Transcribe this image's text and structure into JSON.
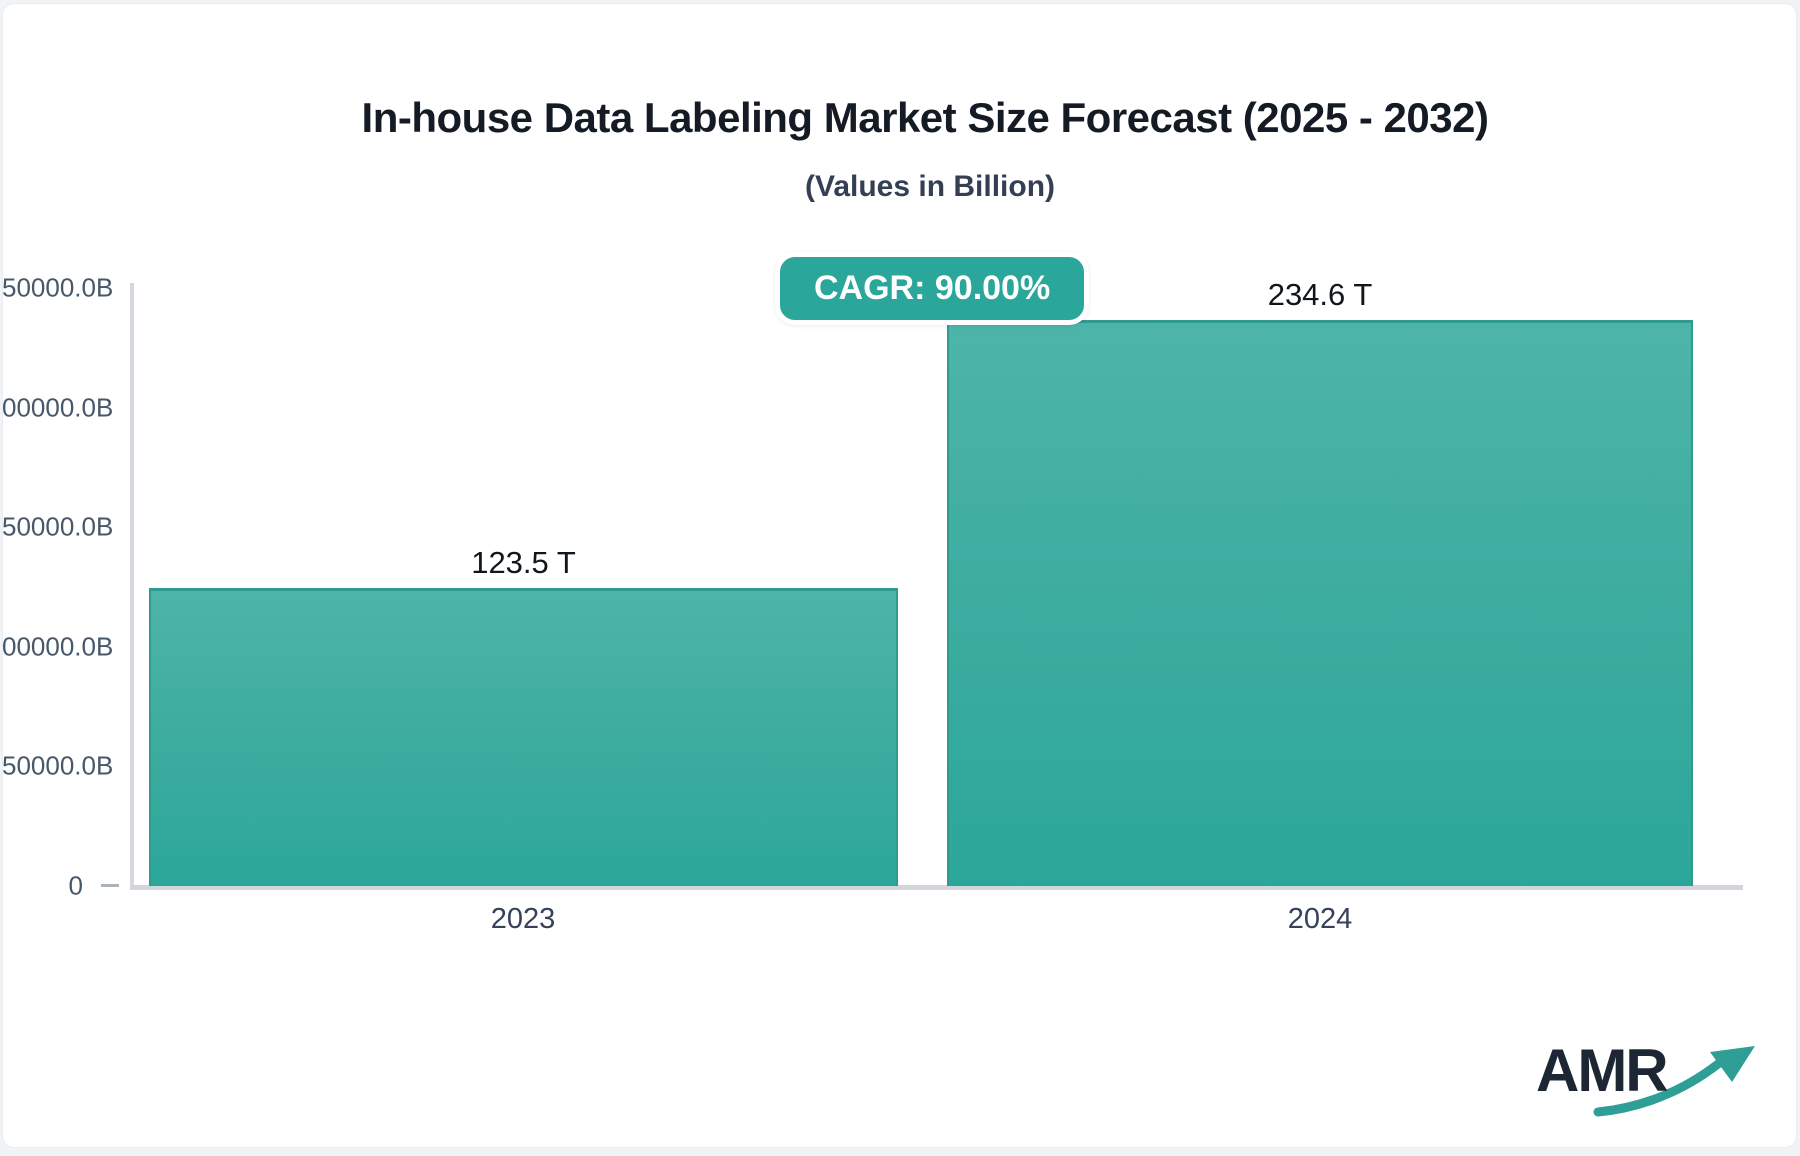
{
  "page": {
    "background": "#f1f4f7",
    "card_background": "#ffffff"
  },
  "header": {
    "title": "In-house Data Labeling Market Size Forecast (2025 - 2032)",
    "subtitle": "(Values in Billion)"
  },
  "badge": {
    "label": "CAGR: 90.00%",
    "background": "#2aa69b",
    "text_color": "#ffffff"
  },
  "chart_data": {
    "type": "bar",
    "title": "In-house Data Labeling Market Size Forecast (2025 - 2032)",
    "subtitle": "(Values in Billion)",
    "categories": [
      "2023",
      "2024"
    ],
    "values": [
      123500,
      234600
    ],
    "value_unit": "B",
    "bar_value_labels": [
      "123.5 T",
      "234.6 T"
    ],
    "cagr": "90.00%",
    "ylim": [
      0,
      250000
    ],
    "y_ticks_B": [
      0,
      50000,
      100000,
      150000,
      200000,
      250000
    ],
    "y_tick_labels_visible": [
      "50000.0B",
      "00000.0B",
      "50000.0B",
      "00000.0B",
      "50000.0B",
      "0"
    ],
    "grid": "off",
    "legend": "none",
    "bar_color_top": "#4eb4a9",
    "bar_color_bottom": "#2ba79a",
    "bar_border_color": "#2f9a90",
    "axis_color": "#d2d6db"
  },
  "logo": {
    "text": "AMR",
    "text_color": "#1c2733",
    "arrow_color": "#2f9e96"
  }
}
